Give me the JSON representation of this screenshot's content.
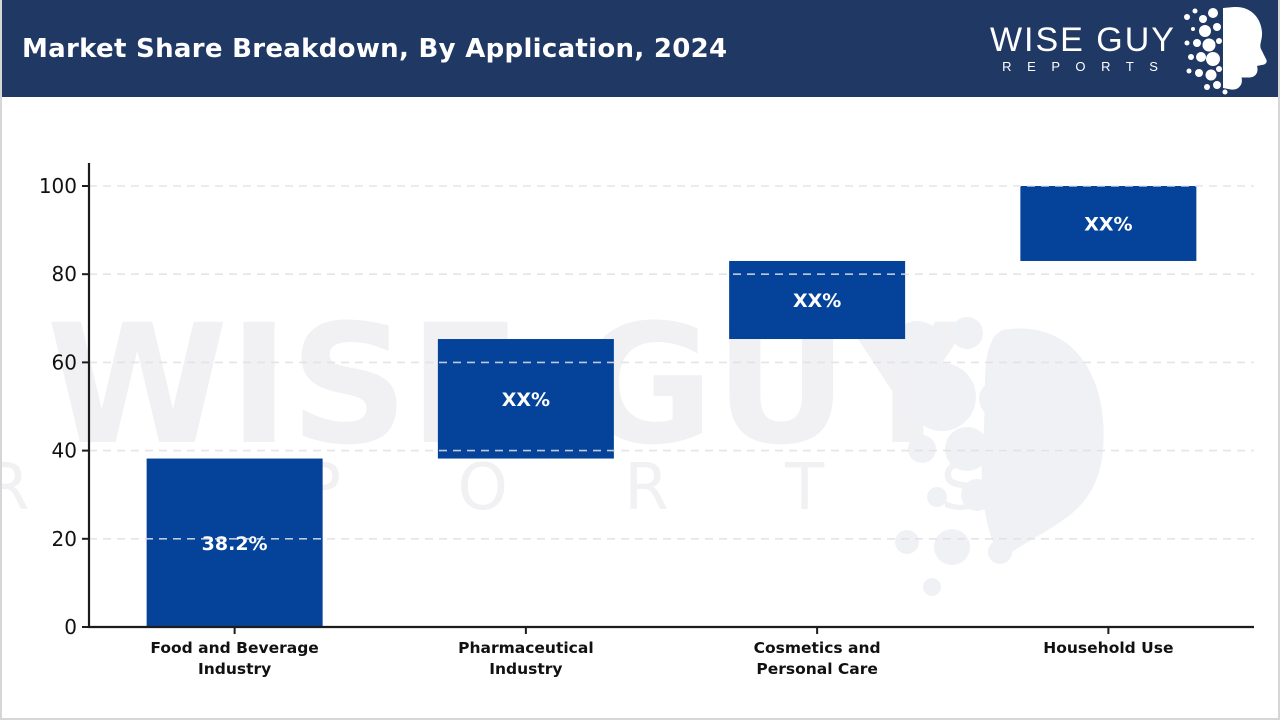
{
  "header": {
    "title": "Market Share Breakdown, By Application, 2024",
    "logo": {
      "name_line": "WISE GUY",
      "sub_line": "R E P O R T S"
    }
  },
  "watermark": {
    "name_line": "WISE GUY",
    "sub_line": "R E P O R T S"
  },
  "chart_data": {
    "type": "bar",
    "variant": "stacked-waterfall-percent",
    "title": "Market Share Breakdown, By Application, 2024",
    "categories": [
      "Food and Beverage\nIndustry",
      "Pharmaceutical\nIndustry",
      "Cosmetics and\nPersonal Care",
      "Household Use"
    ],
    "segments": [
      [
        0,
        38.2
      ],
      [
        38.2,
        65.3
      ],
      [
        65.3,
        83.0
      ],
      [
        83.0,
        100
      ]
    ],
    "segment_sizes_approx": [
      38.2,
      27.1,
      17.7,
      17.0
    ],
    "bar_labels": [
      "38.2%",
      "XX%",
      "XX%",
      "XX%"
    ],
    "xlabel": "",
    "ylabel": "",
    "ylim": [
      0,
      100
    ],
    "yticks": [
      0,
      20,
      40,
      60,
      80,
      100
    ],
    "grid": {
      "horizontal": true,
      "style": "dashed"
    },
    "legend": null
  },
  "colors": {
    "header_bg": "#203864",
    "bar": "#05439a",
    "bar_label": "#ffffff",
    "grid_dash": "#dcdcdc",
    "axis": "#1c1c1c",
    "tick_text": "#111111",
    "watermark": "#f1f1f4"
  }
}
